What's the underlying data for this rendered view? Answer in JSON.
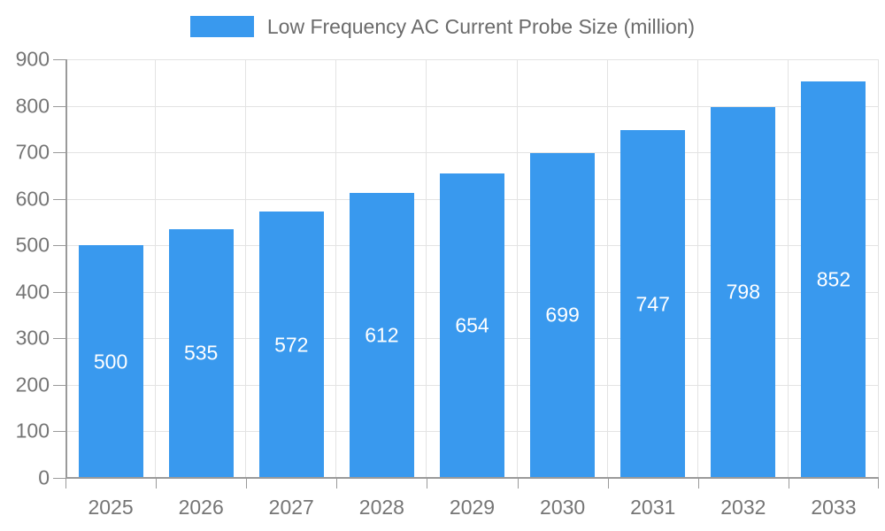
{
  "legend": {
    "label": "Low Frequency AC Current Probe Size (million)"
  },
  "chart_data": {
    "type": "bar",
    "title": "",
    "xlabel": "",
    "ylabel": "",
    "categories": [
      "2025",
      "2026",
      "2027",
      "2028",
      "2029",
      "2030",
      "2031",
      "2032",
      "2033"
    ],
    "series": [
      {
        "name": "Low Frequency AC Current Probe Size (million)",
        "values": [
          500,
          535,
          572,
          612,
          654,
          699,
          747,
          798,
          852
        ]
      }
    ],
    "value_labels_shown": true,
    "ylim": [
      0,
      900
    ],
    "ytick_step": 100,
    "ytick_labels": [
      "0",
      "100",
      "200",
      "300",
      "400",
      "500",
      "600",
      "700",
      "800",
      "900"
    ],
    "grid": true,
    "legend_position": "top",
    "colors": {
      "bar": "#3999EE",
      "value_label": "#FFFFFF",
      "axis_text": "#757575",
      "legend_text": "#6B6B6B",
      "grid_line": "#E3E3E3",
      "axis_line": "#9A9A9A",
      "background": "#FFFFFF"
    }
  }
}
